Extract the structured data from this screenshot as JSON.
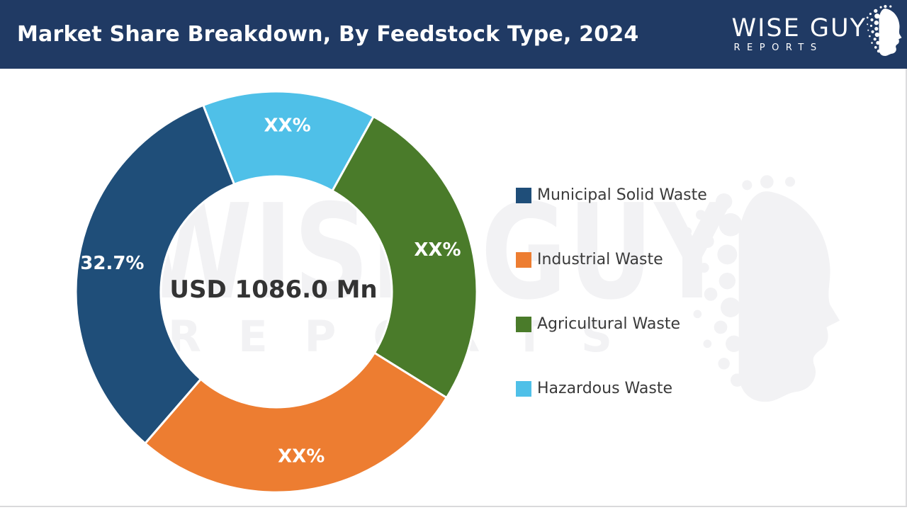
{
  "header": {
    "title": "Market Share Breakdown, By Feedstock Type, 2024",
    "logo": {
      "line1": "WISE GUY",
      "line2": "REPORTS"
    }
  },
  "watermark": {
    "line1": "WISE GUY",
    "line2": "REPORTS"
  },
  "chart_data": {
    "type": "pie",
    "subtype": "donut",
    "title": "Market Share Breakdown, By Feedstock Type, 2024",
    "center_label": "USD 1086.0 Mn",
    "start_angle_deg": -21.4,
    "legend_position": "right",
    "slices": [
      {
        "name": "Hazardous Waste",
        "value_pct": 14.0,
        "label": "XX%",
        "color": "#4FC0E8"
      },
      {
        "name": "Agricultural Waste",
        "value_pct": 25.8,
        "label": "XX%",
        "color": "#4A7B2A"
      },
      {
        "name": "Industrial Waste",
        "value_pct": 27.5,
        "label": "XX%",
        "color": "#ED7D31"
      },
      {
        "name": "Municipal Solid Waste",
        "value_pct": 32.7,
        "label": "32.7%",
        "color": "#1F4E79"
      }
    ],
    "legend": [
      {
        "label": "Municipal Solid Waste",
        "color": "#1F4E79"
      },
      {
        "label": "Industrial Waste",
        "color": "#ED7D31"
      },
      {
        "label": "Agricultural Waste",
        "color": "#4A7B2A"
      },
      {
        "label": "Hazardous Waste",
        "color": "#4FC0E8"
      }
    ]
  },
  "colors": {
    "header_bg": "#203A64",
    "page_bg": "#FFFFFF",
    "divider": "#D9D9DB",
    "center_text": "#333333",
    "legend_text": "#3A3A3A",
    "slice_label_text": "#FFFFFF",
    "watermark": "#F2F2F4"
  }
}
